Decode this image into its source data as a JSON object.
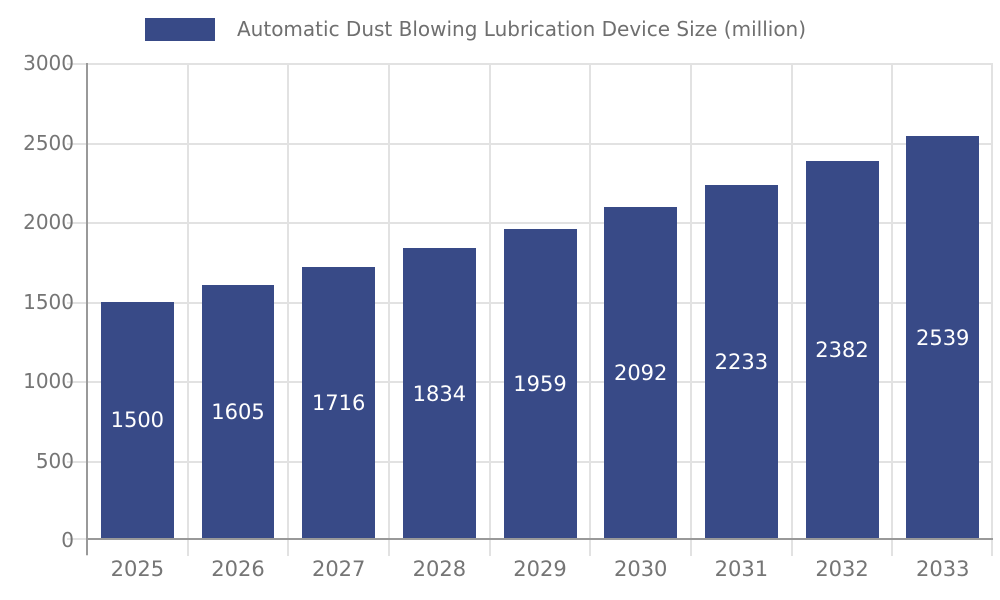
{
  "chart_data": {
    "type": "bar",
    "title": "Automatic Dust Blowing Lubrication Device Size (million)",
    "categories": [
      "2025",
      "2026",
      "2027",
      "2028",
      "2029",
      "2030",
      "2031",
      "2032",
      "2033"
    ],
    "values": [
      1500,
      1605,
      1716,
      1834,
      1959,
      2092,
      2233,
      2382,
      2539
    ],
    "series": [
      {
        "name": "Automatic Dust Blowing Lubrication Device Size (million)",
        "values": [
          1500,
          1605,
          1716,
          1834,
          1959,
          2092,
          2233,
          2382,
          2539
        ]
      }
    ],
    "xlabel": "",
    "ylabel": "",
    "ylim": [
      0,
      3000
    ],
    "yticks": [
      0,
      500,
      1000,
      1500,
      2000,
      2500,
      3000
    ],
    "grid": true,
    "legend_position": "top",
    "value_label_position": "inside-center",
    "colors": {
      "bar": "#384a87",
      "value_label": "#ffffff",
      "grid": "#e2e2e2",
      "axis": "#999999",
      "tick_label": "#757575",
      "legend_text": "#6f6f6f",
      "background": "#ffffff"
    }
  }
}
